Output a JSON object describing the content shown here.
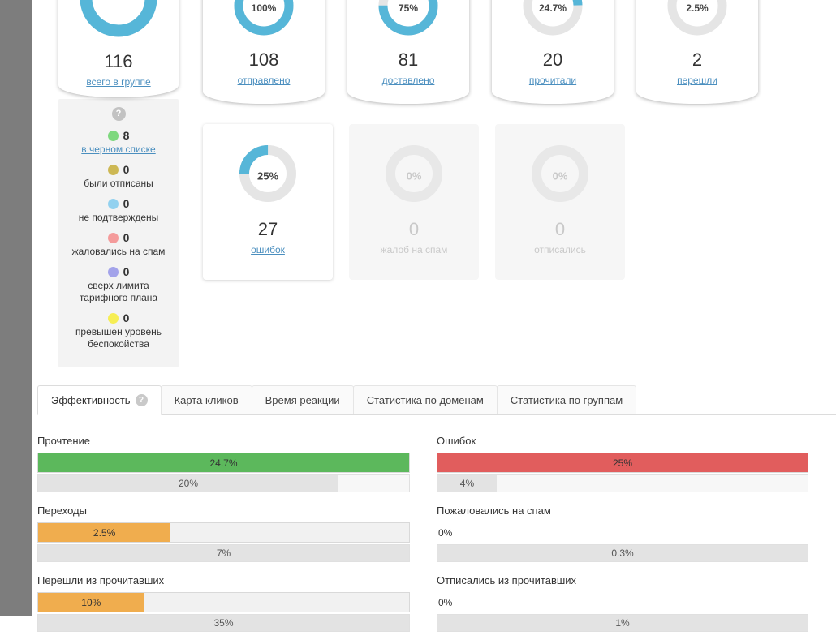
{
  "theme": {
    "accent_blue": "#56b6d8",
    "link_color": "#4b8fbf",
    "green": "#5cb85c",
    "orange": "#f0ad4e",
    "red": "#e15d5d",
    "rail_color": "#7d7d7d"
  },
  "summary": {
    "group_card": {
      "value": "116",
      "label": "всего в группе",
      "percent": 100
    },
    "cards": [
      {
        "value": "108",
        "label": "отправлено",
        "percent": 100,
        "percent_label": "100%"
      },
      {
        "value": "81",
        "label": "доставлено",
        "percent": 75,
        "percent_label": "75%"
      },
      {
        "value": "20",
        "label": "прочитали",
        "percent": 24.7,
        "percent_label": "24.7%"
      },
      {
        "value": "2",
        "label": "перешли",
        "percent": 2.5,
        "percent_label": "2.5%"
      }
    ]
  },
  "legend": {
    "help": "?",
    "items": [
      {
        "count": "8",
        "label": "в черном списке",
        "color": "#7ed87e"
      },
      {
        "count": "0",
        "label": "были отписаны",
        "color": "#cdb854"
      },
      {
        "count": "0",
        "label": "не подтверждены",
        "color": "#92d1ef"
      },
      {
        "count": "0",
        "label": "жаловались на спам",
        "color": "#f49b9b"
      },
      {
        "count": "0",
        "label": "сверх лимита тарифного плана",
        "color": "#a3a3ea"
      },
      {
        "count": "0",
        "label": "превышен уровень беспокойства",
        "color": "#f6ee54"
      }
    ]
  },
  "detail_cards": [
    {
      "percent_label": "25%",
      "percent": 25,
      "value": "27",
      "label": "ошибок"
    },
    {
      "percent_label": "0%",
      "percent": 0,
      "value": "0",
      "label": "жалоб на спам"
    },
    {
      "percent_label": "0%",
      "percent": 0,
      "value": "0",
      "label": "отписались"
    }
  ],
  "tabs": [
    {
      "label": "Эффективность",
      "help": "?"
    },
    {
      "label": "Карта кликов"
    },
    {
      "label": "Время реакции"
    },
    {
      "label": "Статистика по доменам"
    },
    {
      "label": "Статистика по группам"
    }
  ],
  "metrics": {
    "left": [
      {
        "title": "Прочтение",
        "value": 24.7,
        "value_label": "24.7%",
        "avg": 20,
        "avg_label": "20%",
        "color": "#5cb85c"
      },
      {
        "title": "Переходы",
        "value": 2.5,
        "value_label": "2.5%",
        "avg": 7,
        "avg_label": "7%",
        "color": "#f0ad4e"
      },
      {
        "title": "Перешли из прочитавших",
        "value": 10,
        "value_label": "10%",
        "avg": 35,
        "avg_label": "35%",
        "color": "#f0ad4e"
      }
    ],
    "right": [
      {
        "title": "Ошибок",
        "value": 25,
        "value_label": "25%",
        "avg": 4,
        "avg_label": "4%",
        "color": "#e15d5d"
      },
      {
        "title": "Пожаловались на спам",
        "value": 0,
        "value_label": "0%",
        "avg": 0.3,
        "avg_label": "0.3%",
        "color": "#f0ad4e"
      },
      {
        "title": "Отписались из прочитавших",
        "value": 0,
        "value_label": "0%",
        "avg": 1,
        "avg_label": "1%",
        "color": "#f0ad4e"
      }
    ]
  }
}
